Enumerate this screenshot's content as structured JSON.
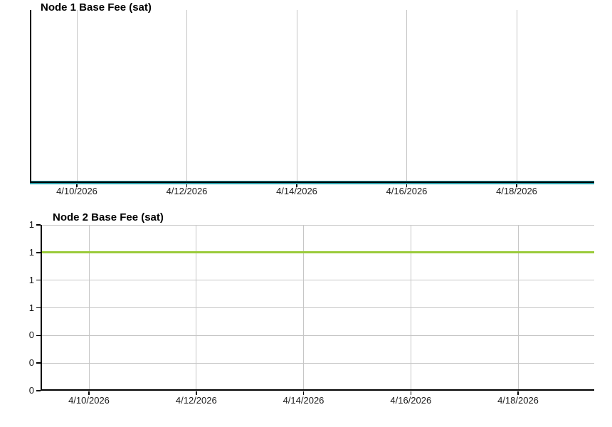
{
  "page": {
    "background": "#ffffff"
  },
  "colors": {
    "axis": "#000000",
    "gridline": "#c6c6c6",
    "title_text": "#000000",
    "tick_label_text": "#1a1a1a",
    "node1_line": "#2aa0ab",
    "node2_line": "#9acb3a"
  },
  "chart_data": [
    {
      "type": "line",
      "title": "Node 1 Base Fee (sat)",
      "x_tick_labels": [
        "4/10/2026",
        "4/12/2026",
        "4/14/2026",
        "4/16/2026",
        "4/18/2026"
      ],
      "y_tick_labels": [],
      "xlabel": "",
      "ylabel": "",
      "grid": "vertical-only",
      "legend": "none",
      "series": [
        {
          "name": "Node 1 Base Fee (sat)",
          "color": "#2aa0ab",
          "values": [
            0,
            0,
            0,
            0,
            0
          ]
        }
      ]
    },
    {
      "type": "line",
      "title": "Node 2 Base Fee (sat)",
      "x_tick_labels": [
        "4/10/2026",
        "4/12/2026",
        "4/14/2026",
        "4/16/2026",
        "4/18/2026"
      ],
      "y_tick_labels": [
        "1",
        "1",
        "1",
        "1",
        "0",
        "0",
        "0"
      ],
      "xlabel": "",
      "ylabel": "",
      "grid": "both",
      "legend": "none",
      "ylim": [
        0,
        1.2
      ],
      "series": [
        {
          "name": "Node 2 Base Fee (sat)",
          "color": "#9acb3a",
          "values": [
            1,
            1,
            1,
            1,
            1
          ]
        }
      ]
    }
  ]
}
